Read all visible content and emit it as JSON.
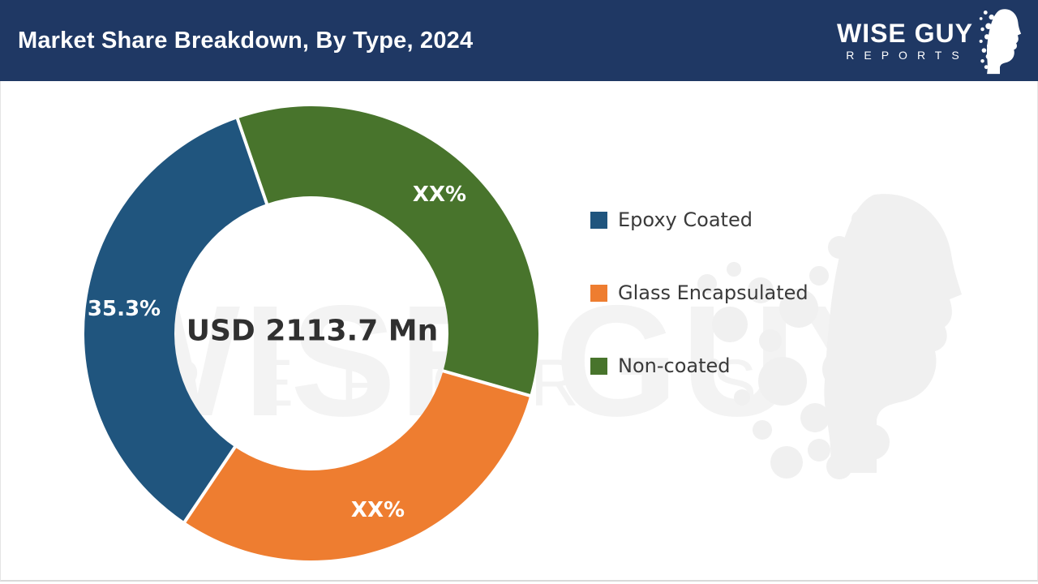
{
  "header": {
    "title": "Market Share Breakdown, By Type, 2024",
    "logo": {
      "wordmark": "WISE GUY",
      "subtitle": "REPORTS"
    }
  },
  "chart_data": {
    "type": "pie",
    "subtype": "donut",
    "title": "Market Share Breakdown, By Type, 2024",
    "center_label": "USD 2113.7 Mn",
    "start_angle_deg": 109,
    "direction": "counterclockwise",
    "inner_radius_ratio": 0.6,
    "legend_position": "right",
    "slices": [
      {
        "name": "Epoxy Coated",
        "label": "35.3%",
        "sweep_pct_estimate": 35.3,
        "color": "#20557E"
      },
      {
        "name": "Glass Encapsulated",
        "label": "XX%",
        "sweep_pct_estimate": 30.0,
        "color": "#EE7D30"
      },
      {
        "name": "Non-coated",
        "label": "XX%",
        "sweep_pct_estimate": 34.7,
        "color": "#48742C"
      }
    ]
  },
  "watermark": {
    "wordmark": "WISE GUY",
    "subtitle": "REPORTS"
  },
  "colors": {
    "header_bg": "#1F3864",
    "center_text": "#303030",
    "legend_text": "#3A3A3A",
    "slice_label_text": "#FFFFFF"
  }
}
